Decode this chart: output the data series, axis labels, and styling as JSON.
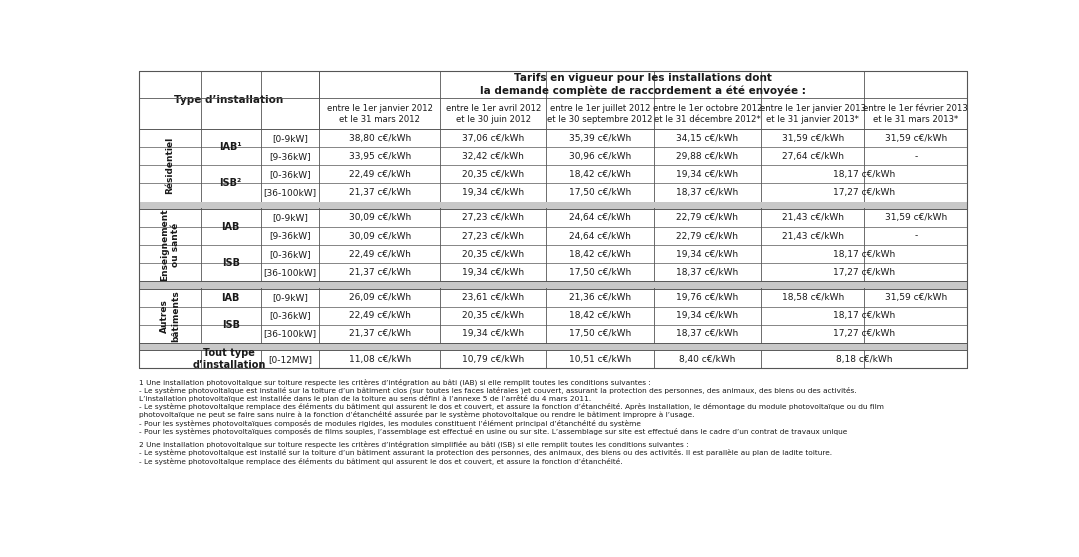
{
  "title_line1": "Tarifs en vigueur pour les installations dont",
  "title_line2": "la demande complète de raccordement a été envoyée :",
  "col_headers": [
    "entre le 1er janvier 2012\net le 31 mars 2012",
    "entre le 1er avril 2012\net le 30 juin 2012",
    "entre le 1er juillet 2012\net le 30 septembre 2012",
    "entre le 1er octobre 2012\net le 31 décembre 2012*",
    "entre le 1er janvier 2013\net le 31 janvier 2013*",
    "entre le 1er février 2013\net le 31 mars 2013*"
  ],
  "sections": [
    {
      "label": "Résidentiel",
      "sub_groups": [
        {
          "name": "IAB¹",
          "rows": [
            {
              "range": "[0-9kW]",
              "vals": [
                "38,80 c€/kWh",
                "37,06 c€/kWh",
                "35,39 c€/kWh",
                "34,15 c€/kWh",
                "31,59 c€/kWh",
                "31,59 c€/kWh"
              ],
              "merge56": false
            },
            {
              "range": "[9-36kW]",
              "vals": [
                "33,95 c€/kWh",
                "32,42 c€/kWh",
                "30,96 c€/kWh",
                "29,88 c€/kWh",
                "27,64 c€/kWh",
                "-"
              ],
              "merge56": false
            }
          ]
        },
        {
          "name": "ISB²",
          "rows": [
            {
              "range": "[0-36kW]",
              "vals": [
                "22,49 c€/kWh",
                "20,35 c€/kWh",
                "18,42 c€/kWh",
                "19,34 c€/kWh",
                "18,17 c€/kWh",
                ""
              ],
              "merge56": true,
              "merge56_text": "18,17 c€/kWh"
            },
            {
              "range": "[36-100kW]",
              "vals": [
                "21,37 c€/kWh",
                "19,34 c€/kWh",
                "17,50 c€/kWh",
                "18,37 c€/kWh",
                "17,27 c€/kWh",
                ""
              ],
              "merge56": true,
              "merge56_text": "17,27 c€/kWh"
            }
          ]
        }
      ]
    },
    {
      "label": "Enseignement\nou santé",
      "sub_groups": [
        {
          "name": "IAB",
          "rows": [
            {
              "range": "[0-9kW]",
              "vals": [
                "30,09 c€/kWh",
                "27,23 c€/kWh",
                "24,64 c€/kWh",
                "22,79 c€/kWh",
                "21,43 c€/kWh",
                "31,59 c€/kWh"
              ],
              "merge56": false
            },
            {
              "range": "[9-36kW]",
              "vals": [
                "30,09 c€/kWh",
                "27,23 c€/kWh",
                "24,64 c€/kWh",
                "22,79 c€/kWh",
                "21,43 c€/kWh",
                "-"
              ],
              "merge56": false
            }
          ]
        },
        {
          "name": "ISB",
          "rows": [
            {
              "range": "[0-36kW]",
              "vals": [
                "22,49 c€/kWh",
                "20,35 c€/kWh",
                "18,42 c€/kWh",
                "19,34 c€/kWh",
                "18,17 c€/kWh",
                ""
              ],
              "merge56": true,
              "merge56_text": "18,17 c€/kWh"
            },
            {
              "range": "[36-100kW]",
              "vals": [
                "21,37 c€/kWh",
                "19,34 c€/kWh",
                "17,50 c€/kWh",
                "18,37 c€/kWh",
                "17,27 c€/kWh",
                ""
              ],
              "merge56": true,
              "merge56_text": "17,27 c€/kWh"
            }
          ]
        }
      ]
    },
    {
      "label": "Autres\nbâtiments",
      "sub_groups": [
        {
          "name": "IAB",
          "rows": [
            {
              "range": "[0-9kW]",
              "vals": [
                "26,09 c€/kWh",
                "23,61 c€/kWh",
                "21,36 c€/kWh",
                "19,76 c€/kWh",
                "18,58 c€/kWh",
                "31,59 c€/kWh"
              ],
              "merge56": false
            }
          ]
        },
        {
          "name": "ISB",
          "rows": [
            {
              "range": "[0-36kW]",
              "vals": [
                "22,49 c€/kWh",
                "20,35 c€/kWh",
                "18,42 c€/kWh",
                "19,34 c€/kWh",
                "18,17 c€/kWh",
                ""
              ],
              "merge56": true,
              "merge56_text": "18,17 c€/kWh"
            },
            {
              "range": "[36-100kW]",
              "vals": [
                "21,37 c€/kWh",
                "19,34 c€/kWh",
                "17,50 c€/kWh",
                "18,37 c€/kWh",
                "17,27 c€/kWh",
                ""
              ],
              "merge56": true,
              "merge56_text": "17,27 c€/kWh"
            }
          ]
        }
      ]
    },
    {
      "label": "Tout type\nd’installation",
      "sub_groups": [
        {
          "name": "",
          "rows": [
            {
              "range": "[0-12MW]",
              "vals": [
                "11,08 c€/kWh",
                "10,79 c€/kWh",
                "10,51 c€/kWh",
                "8,40 c€/kWh",
                "8,18 c€/kWh",
                ""
              ],
              "merge56": true,
              "merge56_text": "8,18 c€/kWh"
            }
          ]
        }
      ]
    }
  ],
  "footnotes": [
    "1 Une installation photovoltaïque sur toiture respecte les critères d’intégration au bâti (IAB) si elle remplit toutes les conditions suivantes :",
    "- Le système photovoltaïque est installé sur la toiture d’un bâtiment clos (sur toutes les faces latérales )et couvert, assurant la protection des personnes, des animaux, des biens ou des activités.",
    "L’installation photovoltaïque est installée dans le plan de la toiture au sens défini à l’annexe 5 de l’arrêté du 4 mars 2011.",
    "- Le système photovoltaïque remplace des éléments du bâtiment qui assurent le dos et couvert, et assure la fonction d’étanchéité. Après installation, le démontage du module photovoltaïque ou du film",
    "photovoltaïque ne peut se faire sans nuire à la fonction d’étanchéité assurée par le système photovoltaïque ou rendre le bâtiment impropre à l’usage.",
    "- Pour les systèmes photovoltaïques composés de modules rigides, les modules constituent l’élément principal d’étanchéité du système",
    "- Pour les systèmes photovoltaïques composés de films souples, l’assemblage est effectué en usine ou sur site. L’assemblage sur site est effectué dans le cadre d’un contrat de travaux unique",
    "",
    "2 Une installation photovoltaïque sur toiture respecte les critères d’intégration simplifiée au bâti (ISB) si elle remplit toutes les conditions suivantes :",
    "- Le système photovoltaïque est installé sur la toiture d’un bâtiment assurant la protection des personnes, des animaux, des biens ou des activités. Il est parallèle au plan de ladite toiture.",
    "- Le système photovoltaïque remplace des éléments du bâtiment qui assurent le dos et couvert, et assure la fonction d’étanchéité."
  ],
  "sep_color": "#c8c8c8",
  "text_color": "#1a1a1a",
  "border_color": "#555555"
}
